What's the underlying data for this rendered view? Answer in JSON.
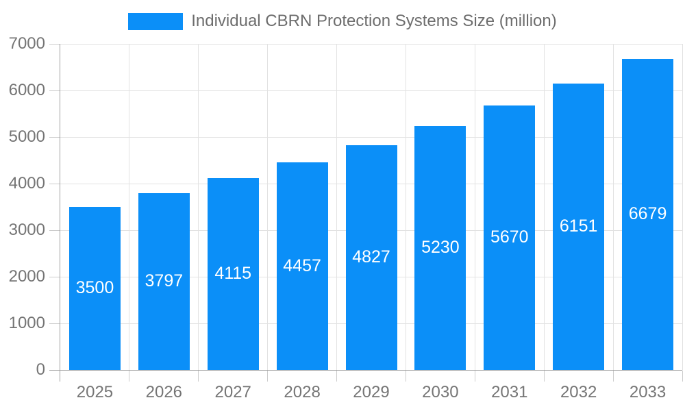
{
  "legend": {
    "label": "Individual CBRN Protection Systems Size (million)"
  },
  "chart_data": {
    "type": "bar",
    "title": "Individual CBRN Protection Systems Size (million)",
    "categories": [
      "2025",
      "2026",
      "2027",
      "2028",
      "2029",
      "2030",
      "2031",
      "2032",
      "2033"
    ],
    "values": [
      3500,
      3797,
      4115,
      4457,
      4827,
      5230,
      5670,
      6151,
      6679
    ],
    "xlabel": "",
    "ylabel": "",
    "ylim": [
      0,
      7000
    ],
    "ytick_step": 1000,
    "ytick_labels": [
      "0",
      "1000",
      "2000",
      "3000",
      "4000",
      "5000",
      "6000",
      "7000"
    ],
    "grid": true,
    "legend_position": "top",
    "value_labels_inside_bars": true,
    "colors": {
      "bar": "#0b8ff8",
      "bar_label": "#ffffff",
      "axis_text": "#757575",
      "legend_text": "#6d6d6d",
      "gridline": "#e2e2e2",
      "axis_line": "#9e9e9e",
      "tick": "#cccccc",
      "background": "#ffffff"
    }
  }
}
